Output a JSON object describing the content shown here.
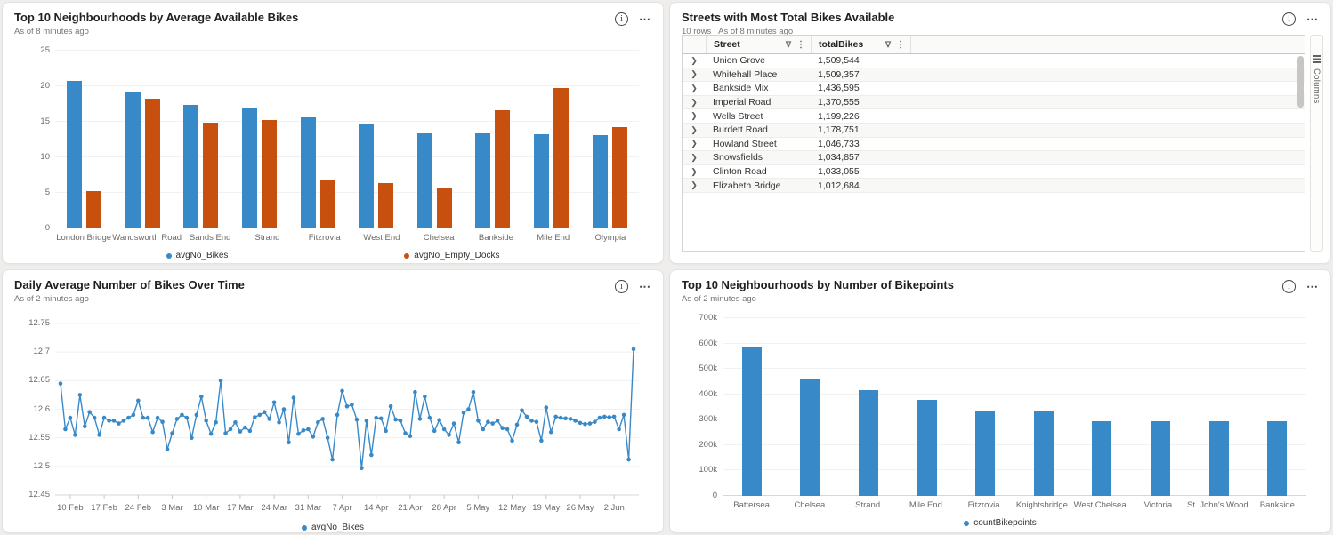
{
  "page": {
    "background": "#efeeec"
  },
  "colors": {
    "blue": "#3789c8",
    "orange": "#c8500f",
    "grid": "#f1f1f0",
    "axis": "#d8d7d5"
  },
  "chart_data": [
    {
      "panel": "top-left",
      "type": "bar",
      "title": "Top 10 Neighbourhoods by Average Available Bikes",
      "subtitle": "As of 8 minutes ago",
      "categories": [
        "London Bridge",
        "Wandsworth Road",
        "Sands End",
        "Strand",
        "Fitzrovia",
        "West End",
        "Chelsea",
        "Bankside",
        "Mile End",
        "Olympia"
      ],
      "series": [
        {
          "name": "avgNo_Bikes",
          "color": "#3789c8",
          "values": [
            20.7,
            19.3,
            17.4,
            16.9,
            15.6,
            14.7,
            13.4,
            13.4,
            13.2,
            13.1
          ]
        },
        {
          "name": "avgNo_Empty_Docks",
          "color": "#c8500f",
          "values": [
            5.2,
            18.3,
            14.9,
            15.2,
            6.9,
            6.4,
            5.7,
            16.6,
            19.8,
            14.2
          ]
        }
      ],
      "ylim": [
        0,
        25
      ],
      "ytick_step": 5,
      "grid": true,
      "legend_position": "bottom"
    },
    {
      "panel": "top-right",
      "type": "table",
      "title": "Streets with Most Total Bikes Available",
      "subtitle": "10 rows · As of 8 minutes ago",
      "columns": [
        "Street",
        "totalBikes"
      ],
      "rows": [
        [
          "Union Grove",
          "1,509,544"
        ],
        [
          "Whitehall Place",
          "1,509,357"
        ],
        [
          "Bankside Mix",
          "1,436,595"
        ],
        [
          "Imperial Road",
          "1,370,555"
        ],
        [
          "Wells Street",
          "1,199,226"
        ],
        [
          "Burdett Road",
          "1,178,751"
        ],
        [
          "Howland Street",
          "1,046,733"
        ],
        [
          "Snowsfields",
          "1,034,857"
        ],
        [
          "Clinton Road",
          "1,033,055"
        ],
        [
          "Elizabeth Bridge",
          "1,012,684"
        ]
      ],
      "side_tab_label": "Columns"
    },
    {
      "panel": "bottom-left",
      "type": "line",
      "title": "Daily Average Number of Bikes Over Time",
      "subtitle": "As of 2 minutes ago",
      "x_ticks": [
        "10 Feb",
        "17 Feb",
        "24 Feb",
        "3 Mar",
        "10 Mar",
        "17 Mar",
        "24 Mar",
        "31 Mar",
        "7 Apr",
        "14 Apr",
        "21 Apr",
        "28 Apr",
        "5 May",
        "12 May",
        "19 May",
        "26 May",
        "2 Jun"
      ],
      "x_tick_first_index": 2,
      "x_tick_interval": 7,
      "series": [
        {
          "name": "avgNo_Bikes",
          "color": "#3789c8",
          "values": [
            12.645,
            12.565,
            12.585,
            12.555,
            12.625,
            12.57,
            12.595,
            12.585,
            12.555,
            12.585,
            12.58,
            12.58,
            12.575,
            12.58,
            12.585,
            12.59,
            12.615,
            12.585,
            12.585,
            12.56,
            12.585,
            12.578,
            12.53,
            12.558,
            12.583,
            12.59,
            12.585,
            12.55,
            12.59,
            12.622,
            12.58,
            12.557,
            12.577,
            12.65,
            12.558,
            12.565,
            12.577,
            12.561,
            12.568,
            12.562,
            12.586,
            12.59,
            12.595,
            12.583,
            12.612,
            12.577,
            12.6,
            12.542,
            12.62,
            12.557,
            12.563,
            12.565,
            12.552,
            12.577,
            12.583,
            12.55,
            12.512,
            12.59,
            12.632,
            12.605,
            12.608,
            12.582,
            12.497,
            12.58,
            12.52,
            12.585,
            12.584,
            12.562,
            12.605,
            12.582,
            12.58,
            12.558,
            12.553,
            12.63,
            12.583,
            12.622,
            12.585,
            12.562,
            12.581,
            12.565,
            12.555,
            12.575,
            12.542,
            12.594,
            12.6,
            12.63,
            12.58,
            12.565,
            12.578,
            12.575,
            12.58,
            12.567,
            12.565,
            12.545,
            12.573,
            12.598,
            12.587,
            12.58,
            12.578,
            12.545,
            12.603,
            12.56,
            12.587,
            12.585,
            12.584,
            12.583,
            12.58,
            12.576,
            12.574,
            12.575,
            12.578,
            12.585,
            12.587,
            12.586,
            12.587,
            12.565,
            12.59,
            12.512,
            12.705
          ]
        }
      ],
      "ylim": [
        12.45,
        12.75
      ],
      "ytick_step": 0.05,
      "grid": true,
      "legend_position": "bottom"
    },
    {
      "panel": "bottom-right",
      "type": "bar",
      "title": "Top 10 Neighbourhoods by Number of Bikepoints",
      "subtitle": "As of 2 minutes ago",
      "categories": [
        "Battersea",
        "Chelsea",
        "Strand",
        "Mile End",
        "Fitzrovia",
        "Knightsbridge",
        "West Chelsea",
        "Victoria",
        "St. John's Wood",
        "Bankside"
      ],
      "series": [
        {
          "name": "countBikepoints",
          "color": "#3789c8",
          "values": [
            585000,
            462000,
            417000,
            378000,
            335000,
            335000,
            295000,
            295000,
            295000,
            295000
          ]
        }
      ],
      "ylim": [
        0,
        700000
      ],
      "ytick_step": 100000,
      "ytick_format": "k",
      "grid": true,
      "legend_position": "bottom"
    }
  ]
}
